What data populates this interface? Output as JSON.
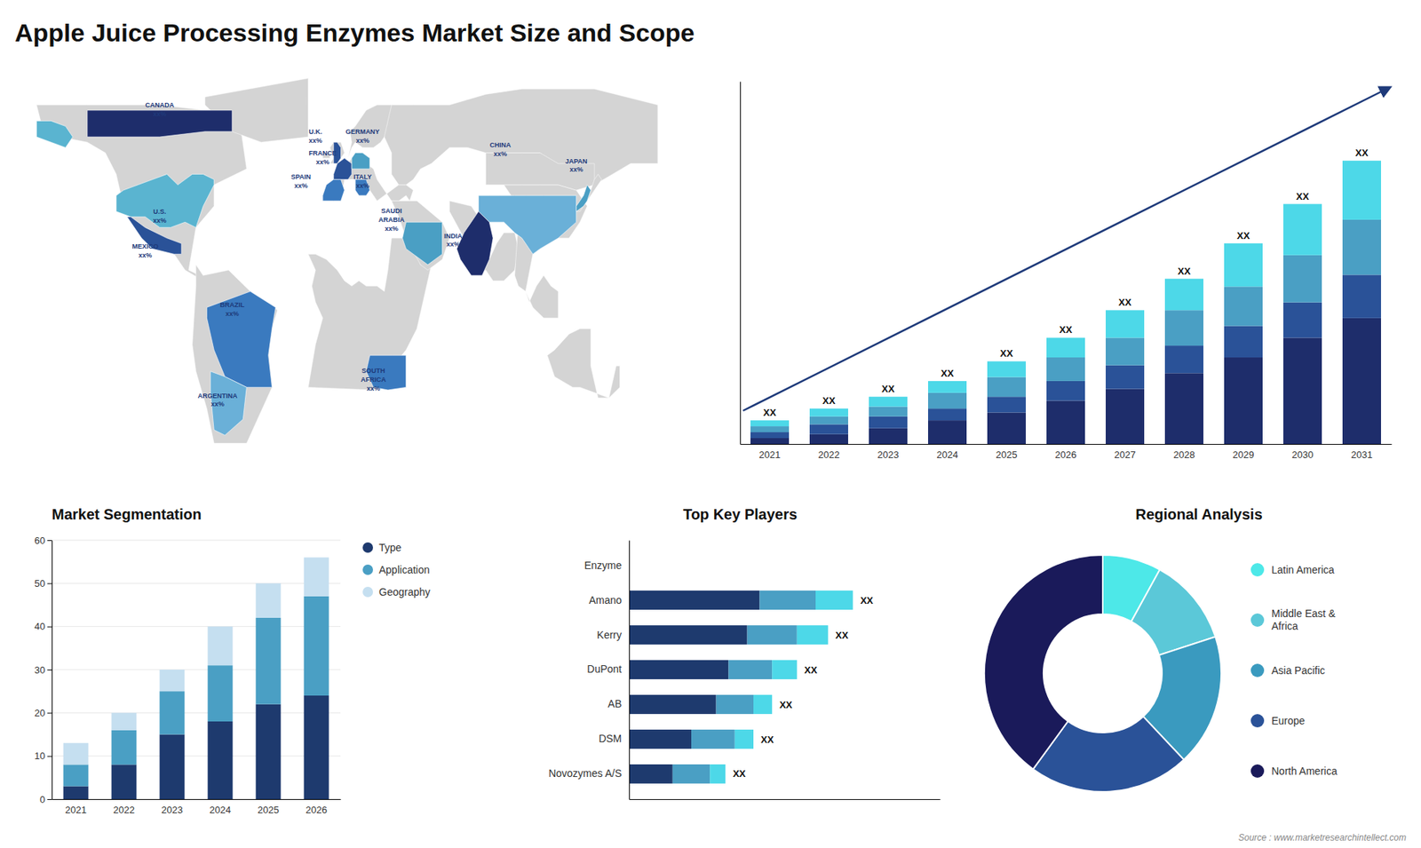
{
  "title": "Apple Juice Processing Enzymes Market Size and Scope",
  "annotations": [
    "Source : www.marketresearchintellect.com"
  ],
  "chart_data": [
    {
      "type": "map",
      "categories": [
        "CANADA",
        "U.S.",
        "MEXICO",
        "BRAZIL",
        "ARGENTINA",
        "U.K.",
        "FRANCE",
        "SPAIN",
        "GERMANY",
        "ITALY",
        "SAUDI\nARABIA",
        "SOUTH\nAFRICA",
        "CHINA",
        "INDIA",
        "JAPAN"
      ],
      "annotations": [
        "xx%",
        "xx%",
        "xx%",
        "xx%",
        "xx%",
        "xx%",
        "xx%",
        "xx%",
        "xx%",
        "xx%",
        "xx%",
        "xx%",
        "xx%",
        "xx%",
        "xx%"
      ],
      "colors": [
        "#1e2d6b",
        "#5ab4d0",
        "#2a5298",
        "#3a7abf",
        "#6ab0d8",
        "#2a5298",
        "#2a5298",
        "#3a7abf",
        "#4a9fc4",
        "#3a7abf",
        "#4a9fc4",
        "#3a7abf",
        "#6ab0d8",
        "#1e2d6b",
        "#4a9fc4"
      ]
    },
    {
      "type": "bar",
      "stacked": true,
      "categories": [
        "2021",
        "2022",
        "2023",
        "2024",
        "2025",
        "2026",
        "2027",
        "2028",
        "2029",
        "2030",
        "2031"
      ],
      "series": [
        {
          "color": "#1e2d6b",
          "values": [
            1.5,
            2.5,
            4,
            6,
            8,
            11,
            14,
            18,
            22,
            27,
            32
          ]
        },
        {
          "color": "#2a5298",
          "values": [
            1.5,
            2.5,
            3,
            3,
            4,
            5,
            6,
            7,
            8,
            9,
            11
          ]
        },
        {
          "color": "#4a9fc4",
          "values": [
            1.5,
            2,
            2.5,
            4,
            5,
            6,
            7,
            9,
            10,
            12,
            14
          ]
        },
        {
          "color": "#4dd8e8",
          "values": [
            1.5,
            2,
            2.5,
            3,
            4,
            5,
            7,
            8,
            11,
            13,
            15
          ]
        }
      ],
      "ylim": [
        0,
        92.16
      ],
      "tick_labels": "x",
      "annotations": [
        "XX",
        "XX",
        "XX",
        "XX",
        "XX",
        "XX",
        "XX",
        "XX",
        "XX",
        "XX",
        "XX"
      ]
    },
    {
      "type": "bar",
      "stacked": true,
      "title": "Market Segmentation",
      "categories": [
        "2021",
        "2022",
        "2023",
        "2024",
        "2025",
        "2026"
      ],
      "series": [
        {
          "name": "Type",
          "color": "#1e3a6e",
          "values": [
            3,
            8,
            15,
            18,
            22,
            24
          ]
        },
        {
          "name": "Application",
          "color": "#4a9fc4",
          "values": [
            5,
            8,
            10,
            13,
            20,
            23
          ]
        },
        {
          "name": "Geography",
          "color": "#c5dff0",
          "values": [
            5,
            4,
            5,
            9,
            8,
            9
          ]
        }
      ],
      "ylim": [
        0,
        60
      ],
      "yticks": [
        0,
        10,
        20,
        30,
        40,
        50,
        60
      ],
      "grid": true,
      "legend": "right"
    },
    {
      "type": "bar",
      "stacked": true,
      "orientation": "horizontal",
      "title": "Top Key Players",
      "categories": [
        "Enzyme",
        "Amano",
        "Kerry",
        "DuPont",
        "AB",
        "DSM",
        "Novozymes A/S"
      ],
      "series": [
        {
          "color": "#1e3a6e",
          "values": [
            null,
            0.42,
            0.38,
            0.32,
            0.28,
            0.2,
            0.14
          ]
        },
        {
          "color": "#4a9fc4",
          "values": [
            null,
            0.18,
            0.16,
            0.14,
            0.12,
            0.14,
            0.12
          ]
        },
        {
          "color": "#4dd8e8",
          "values": [
            null,
            0.12,
            0.1,
            0.08,
            0.06,
            0.06,
            0.05
          ]
        }
      ],
      "xlim": [
        0,
        1
      ],
      "tick_labels": "y",
      "annotations": [
        "XX",
        "XX",
        "XX",
        "XX",
        "XX",
        "XX"
      ]
    },
    {
      "type": "pie",
      "title": "Regional Analysis",
      "categories": [
        "Latin America",
        "Middle East &\nAfrica",
        "Asia Pacific",
        "Europe",
        "North America"
      ],
      "values": [
        8,
        12,
        18,
        22,
        40
      ],
      "colors": [
        "#4de8e8",
        "#5bc8d8",
        "#3a9abf",
        "#2a5298",
        "#1a1a5a"
      ],
      "legend": "right"
    }
  ]
}
